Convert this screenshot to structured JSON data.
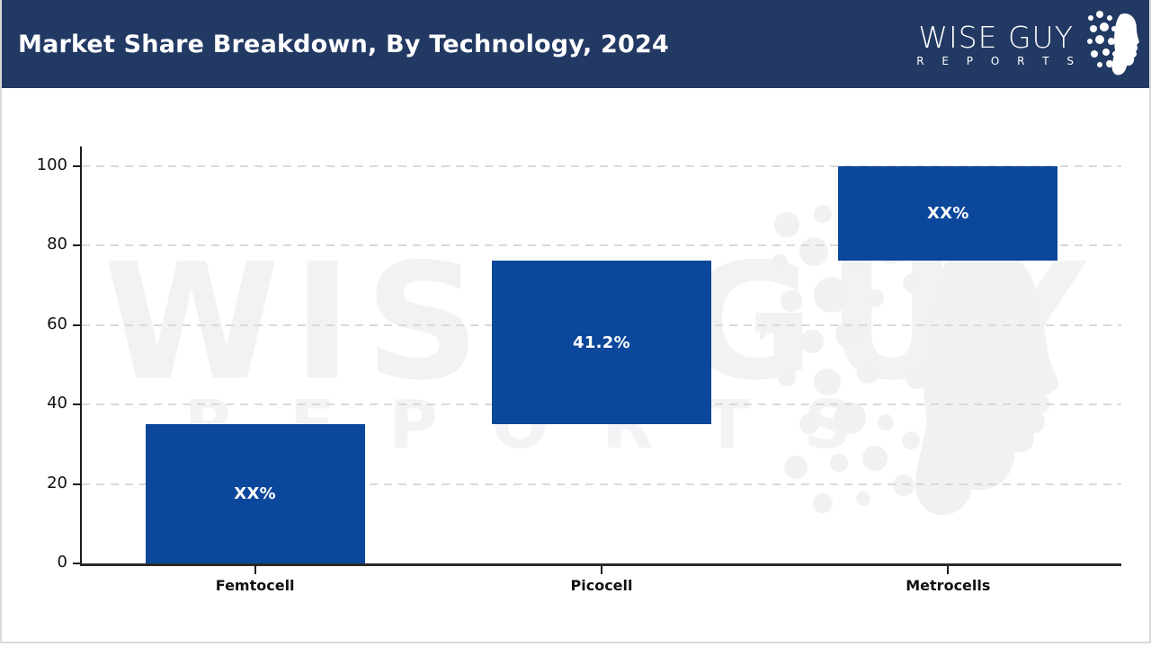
{
  "header": {
    "bg_color": "#223963",
    "title": "Market Share Breakdown, By Technology, 2024",
    "logo": {
      "line1": "WISE GUY",
      "line2": "R E P O R T S"
    }
  },
  "watermark": {
    "line1": "WISE GUY",
    "line2": "REPORTS"
  },
  "chart_data": {
    "type": "bar",
    "subtype": "waterfall",
    "title": "Market Share Breakdown, By Technology, 2024",
    "categories": [
      "Femtocell",
      "Picocell",
      "Metrocells"
    ],
    "series": [
      {
        "name": "Market Share (%)",
        "segments": [
          {
            "category": "Femtocell",
            "start": 0,
            "end": 35,
            "label": "XX%"
          },
          {
            "category": "Picocell",
            "start": 35,
            "end": 76.2,
            "label": "41.2%"
          },
          {
            "category": "Metrocells",
            "start": 76.2,
            "end": 100,
            "label": "XX%"
          }
        ]
      }
    ],
    "xlabel": "",
    "ylabel": "",
    "yticks": [
      0,
      20,
      40,
      60,
      80,
      100
    ],
    "ylim": [
      0,
      105
    ],
    "grid": "horizontal-dashed",
    "legend": "none",
    "bar_color": "#0b479a",
    "bar_label_color": "#ffffff",
    "axis_color": "#1c1c1c",
    "grid_color": "#d9d9d9"
  }
}
